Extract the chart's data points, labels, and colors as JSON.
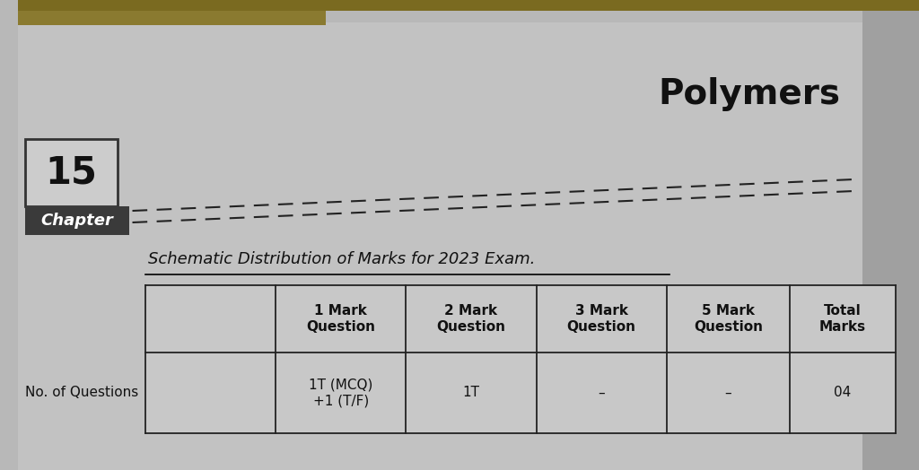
{
  "title": "Polymers",
  "chapter_num": "15",
  "chapter_label": "Chapter",
  "subtitle": "Schematic Distribution of Marks for 2023 Exam.",
  "table_headers": [
    "",
    "1 Mark\nQuestion",
    "2 Mark\nQuestion",
    "3 Mark\nQuestion",
    "5 Mark\nQuestion",
    "Total\nMarks"
  ],
  "table_row_label": "No. of Questions",
  "table_row_data": [
    "1T (MCQ)\n+1 (T/F)",
    "1T",
    "–",
    "–",
    "04"
  ],
  "bg_color": "#b8b8b8",
  "page_color": "#c8c8c8",
  "chapter_text_color": "#111111",
  "title_fontsize": 28,
  "chapter_num_fontsize": 30,
  "chapter_label_fontsize": 13,
  "subtitle_fontsize": 13,
  "table_header_fontsize": 11,
  "table_cell_fontsize": 11,
  "dash_color": "#222222",
  "top_strip_color": "#8a7a30"
}
